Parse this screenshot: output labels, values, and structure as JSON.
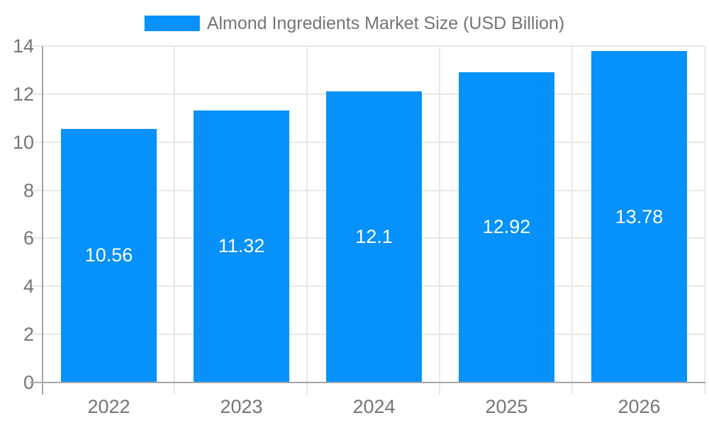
{
  "legend": {
    "label": "Almond Ingredients Market Size (USD Billion)"
  },
  "chart_data": {
    "type": "bar",
    "title": "Almond Ingredients Market Size (USD Billion)",
    "series_name": "Almond Ingredients Market Size (USD Billion)",
    "categories": [
      "2022",
      "2023",
      "2024",
      "2025",
      "2026"
    ],
    "values": [
      10.56,
      11.32,
      12.1,
      12.92,
      13.78
    ],
    "data_labels": [
      "10.56",
      "11.32",
      "12.1",
      "12.92",
      "13.78"
    ],
    "xlabel": "",
    "ylabel": "",
    "ylim": [
      0,
      14
    ],
    "yticks": [
      0,
      2,
      4,
      6,
      8,
      10,
      12,
      14
    ],
    "ytick_labels": [
      "0",
      "2",
      "4",
      "6",
      "8",
      "10",
      "12",
      "14"
    ],
    "grid": true,
    "legend_position": "top",
    "colors": {
      "bar": "#0691fb",
      "axis_line": "#a6a6a6",
      "grid_line": "#e8e8e8",
      "axis_text": "#757575",
      "value_label_text": "#ffffff",
      "background": "#ffffff"
    }
  }
}
